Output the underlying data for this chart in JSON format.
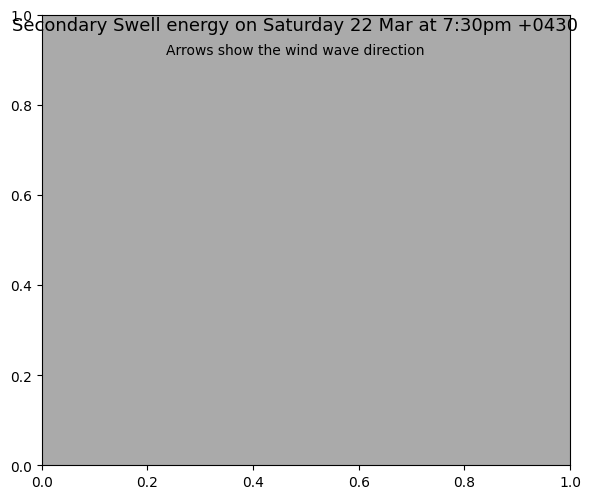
{
  "title": "Secondary Swell energy on Saturday 22 Mar at 7:30pm +0430",
  "subtitle": "Arrows show the wind wave direction",
  "title_fontsize": 13,
  "subtitle_fontsize": 10,
  "extent": [
    42.0,
    82.0,
    22.0,
    48.0
  ],
  "fig_width": 6.01,
  "fig_height": 5.1,
  "dpi": 100,
  "land_color": "#aaaaaa",
  "ocean_color": "#000000",
  "border_color": "#000000",
  "border_linewidth": 0.5,
  "background_color": "#ffffff"
}
